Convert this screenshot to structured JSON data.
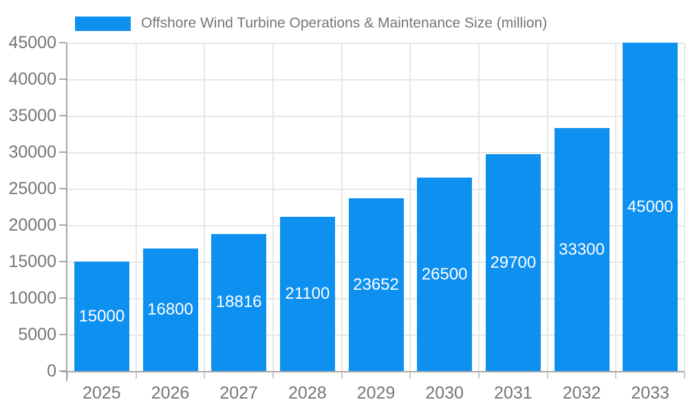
{
  "legend": {
    "items": [
      {
        "label": "Offshore Wind Turbine Operations & Maintenance Size (million)",
        "color": "#0e90f0"
      }
    ]
  },
  "chart_data": {
    "type": "bar",
    "title": "Offshore Wind Turbine Operations & Maintenance Size (million)",
    "categories": [
      "2025",
      "2026",
      "2027",
      "2028",
      "2029",
      "2030",
      "2031",
      "2032",
      "2033"
    ],
    "series": [
      {
        "name": "Offshore Wind Turbine Operations & Maintenance Size (million)",
        "values": [
          15000,
          16800,
          18816,
          21100,
          23652,
          26500,
          29700,
          33300,
          45000
        ]
      }
    ],
    "value_labels_shown": true,
    "xlabel": "",
    "ylabel": "",
    "ylim": [
      0,
      45000
    ],
    "ytick_step": 5000,
    "yticks": [
      0,
      5000,
      10000,
      15000,
      20000,
      25000,
      30000,
      35000,
      40000,
      45000
    ],
    "grid": true,
    "legend_position": "top-left",
    "colors": {
      "bar": "#0e90f0",
      "value_label": "#ffffff",
      "axis_label": "#757575",
      "gridline": "#e6e6e6",
      "axis_line": "#a6a6a6",
      "background": "#ffffff"
    }
  }
}
